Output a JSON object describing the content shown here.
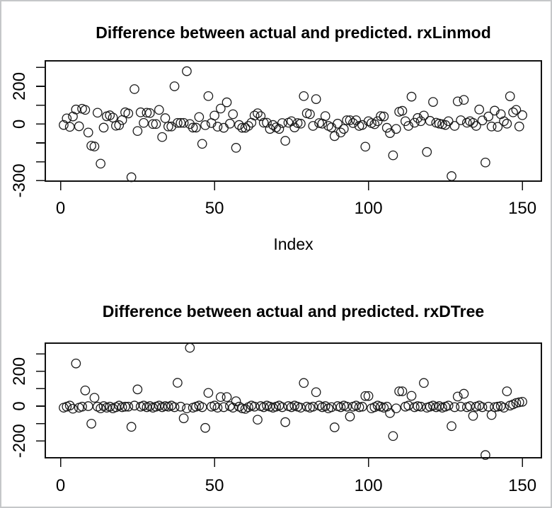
{
  "page": {
    "background_color": "#ffffff",
    "border_color": "#c5c7c9",
    "marker": "open-circle",
    "marker_color": "#000000"
  },
  "chart_data": [
    {
      "type": "scatter",
      "title": "Difference between actual and predicted. rxLinmod",
      "xlabel": "Index",
      "ylabel": "",
      "x_start": 1,
      "x_end": 150,
      "xlim": [
        -5,
        156
      ],
      "ylim": [
        -310,
        335
      ],
      "grid": false,
      "legend": "none",
      "x_axis": {
        "ticks": [
          0,
          50,
          100,
          150
        ]
      },
      "y_axis": {
        "ticks": [
          300,
          200,
          100,
          0,
          -100,
          -200,
          -300
        ],
        "labeled": [
          200,
          0,
          -300
        ]
      },
      "values": [
        -5,
        30,
        -15,
        40,
        77,
        -12,
        81,
        75,
        -45,
        -115,
        -119,
        60,
        -210,
        -19,
        41,
        46,
        34,
        -9,
        -6,
        21,
        62,
        56,
        -282,
        185,
        -37,
        62,
        6,
        60,
        58,
        0,
        0,
        75,
        -69,
        31,
        -13,
        -13,
        200,
        6,
        6,
        6,
        280,
        0,
        -19,
        -19,
        37,
        -105,
        -6,
        148,
        5,
        45,
        -14,
        82,
        -20,
        115,
        2,
        52,
        -126,
        -5,
        -20,
        -20,
        -10,
        7,
        45,
        57,
        42,
        7,
        7,
        -26,
        -5,
        -18,
        -26,
        5,
        -89,
        7,
        15,
        -18,
        5,
        2,
        148,
        57,
        52,
        -10,
        132,
        5,
        2,
        42,
        -10,
        -18,
        -64,
        2,
        -45,
        -26,
        20,
        20,
        5,
        20,
        -10,
        -5,
        -120,
        15,
        5,
        -1,
        15,
        42,
        40,
        -20,
        -48,
        -166,
        -26,
        65,
        70,
        15,
        -10,
        145,
        7,
        32,
        15,
        45,
        -148,
        17,
        117,
        7,
        2,
        -1,
        -5,
        15,
        -276,
        -10,
        120,
        20,
        128,
        7,
        15,
        6,
        -10,
        77,
        19,
        -204,
        40,
        -13,
        71,
        -15,
        52,
        15,
        2,
        147,
        62,
        75,
        -13,
        47
      ]
    },
    {
      "type": "scatter",
      "title": "Difference between actual and predicted. rxDTree",
      "xlabel": "",
      "ylabel": "",
      "x_start": 1,
      "x_end": 150,
      "xlim": [
        -5,
        156
      ],
      "ylim": [
        -300,
        340
      ],
      "grid": false,
      "legend": "none",
      "x_axis": {
        "ticks": [
          0,
          50,
          100,
          150
        ]
      },
      "y_axis": {
        "ticks": [
          300,
          200,
          100,
          0,
          -100,
          -200
        ],
        "labeled": [
          200,
          0,
          -200
        ]
      },
      "values": [
        -9,
        -3,
        3,
        -15,
        245,
        -9,
        -3,
        90,
        0,
        -101,
        48,
        -3,
        -13,
        0,
        -9,
        -3,
        -13,
        -6,
        3,
        -6,
        -3,
        -3,
        -119,
        3,
        96,
        -3,
        3,
        -6,
        0,
        -9,
        -3,
        3,
        -6,
        0,
        -3,
        3,
        -6,
        134,
        -3,
        -70,
        -13,
        335,
        -9,
        -3,
        3,
        -6,
        -125,
        76,
        -3,
        3,
        -9,
        52,
        -6,
        52,
        0,
        -9,
        28,
        -3,
        -13,
        -16,
        -6,
        3,
        -3,
        -78,
        0,
        -6,
        3,
        -3,
        -9,
        -3,
        3,
        -6,
        -92,
        0,
        -6,
        3,
        -3,
        -9,
        133,
        -3,
        -9,
        -3,
        80,
        3,
        -6,
        0,
        -13,
        -6,
        -122,
        0,
        -6,
        3,
        -3,
        -60,
        -3,
        3,
        -6,
        -3,
        58,
        58,
        -13,
        -6,
        3,
        -3,
        -9,
        -3,
        -40,
        -172,
        -13,
        85,
        85,
        -3,
        3,
        59,
        -6,
        0,
        -3,
        133,
        -9,
        -3,
        3,
        -6,
        0,
        -9,
        -3,
        3,
        -115,
        -6,
        55,
        -3,
        71,
        -6,
        0,
        -56,
        -3,
        3,
        -6,
        -281,
        -3,
        -51,
        -6,
        -3,
        0,
        -9,
        85,
        3,
        10,
        18,
        22,
        25
      ]
    }
  ]
}
